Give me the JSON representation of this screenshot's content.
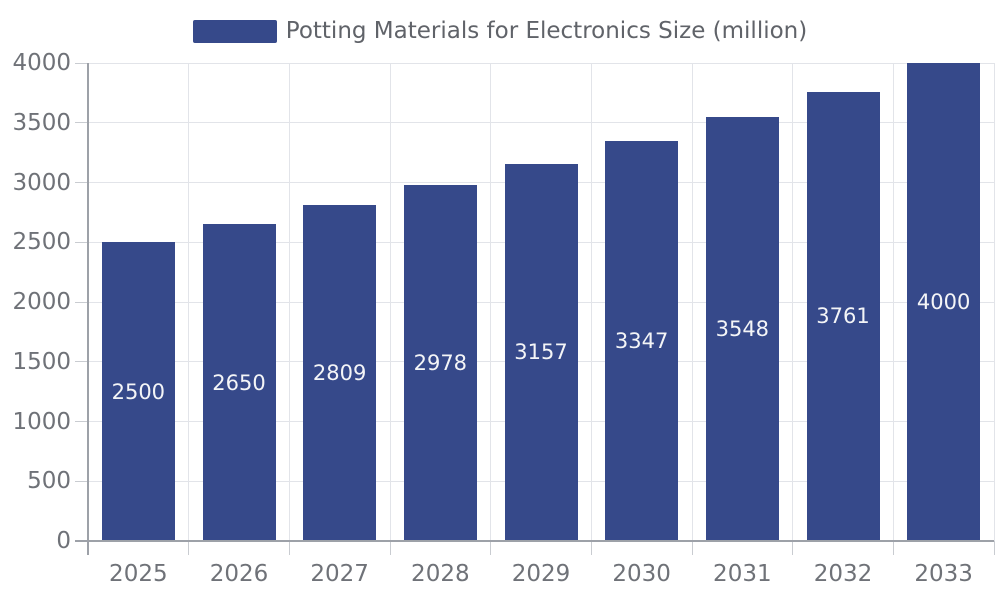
{
  "chart_data": {
    "type": "bar",
    "title": "",
    "series_name": "Potting Materials for Electronics Size (million)",
    "categories": [
      "2025",
      "2026",
      "2027",
      "2028",
      "2029",
      "2030",
      "2031",
      "2032",
      "2033"
    ],
    "values": [
      2500,
      2650,
      2809,
      2978,
      3157,
      3347,
      3548,
      3761,
      4000
    ],
    "value_labels_shown": true,
    "xlabel": "",
    "ylabel": "",
    "ylim": [
      0,
      4000
    ],
    "ytick_step": 500,
    "yticks": [
      0,
      500,
      1000,
      1500,
      2000,
      2500,
      3000,
      3500,
      4000
    ],
    "grid": true,
    "legend_position": "top-center",
    "colors": {
      "bar": "#36498a",
      "value_label_text": "#f4f5f7",
      "axis_text": "#6f7278",
      "legend_text": "#606369",
      "gridline": "#e2e4e9",
      "tick": "#c9ccd1",
      "axis_line": "#9da1a8",
      "background": "#ffffff"
    }
  }
}
